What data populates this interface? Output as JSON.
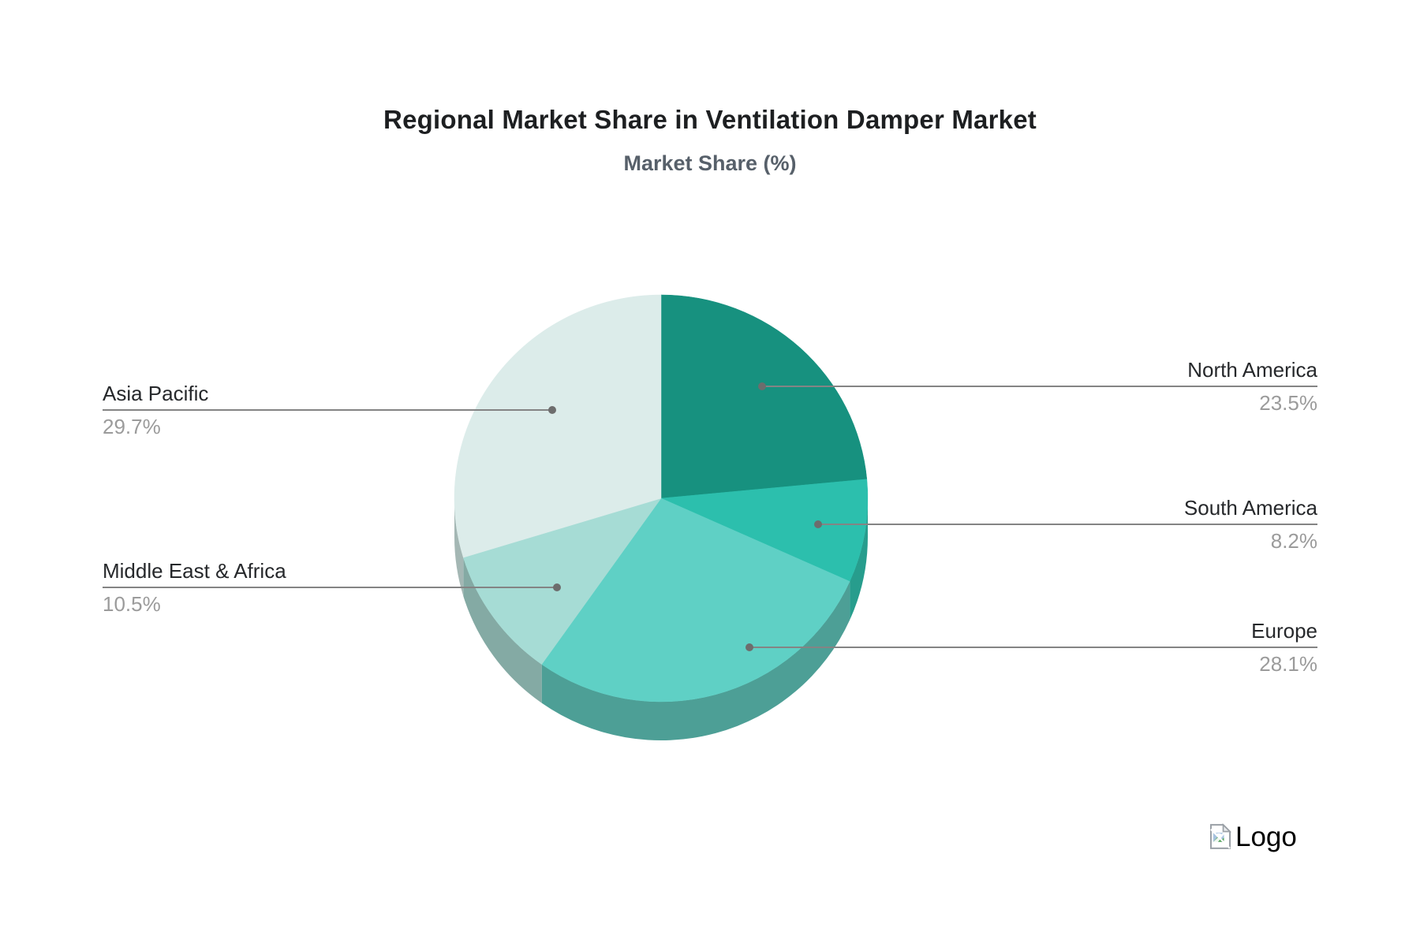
{
  "title": "Regional Market Share in Ventilation Damper Market",
  "subtitle": "Market Share (%)",
  "logo": {
    "alt_text": "Logo"
  },
  "connector_color": "#848484",
  "chart_data": {
    "type": "pie",
    "title": "Regional Market Share in Ventilation Damper Market",
    "subtitle": "Market Share (%)",
    "unit": "%",
    "start_angle_deg": 0,
    "direction": "clockwise",
    "style": "3d-pie",
    "legend_position": "callout-labels",
    "slices": [
      {
        "label": "North America",
        "value": 23.5,
        "display": "23.5%",
        "color": "#17917f",
        "side_color": "#127663"
      },
      {
        "label": "South America",
        "value": 8.2,
        "display": "8.2%",
        "color": "#2cbfad",
        "side_color": "#279d8d"
      },
      {
        "label": "Europe",
        "value": 28.1,
        "display": "28.1%",
        "color": "#5fd0c5",
        "side_color": "#4d9f96"
      },
      {
        "label": "Middle East & Africa",
        "value": 10.5,
        "display": "10.5%",
        "color": "#a6dcd5",
        "side_color": "#84aaa4"
      },
      {
        "label": "Asia Pacific",
        "value": 29.7,
        "display": "29.7%",
        "color": "#dcecea",
        "side_color": "#a4b7b4"
      }
    ]
  }
}
